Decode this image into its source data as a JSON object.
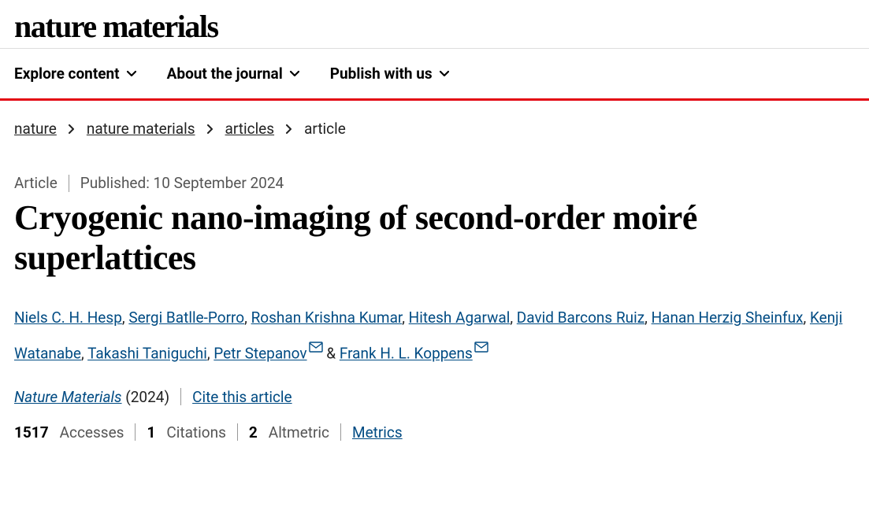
{
  "brand": "nature materials",
  "nav": [
    {
      "label": "Explore content"
    },
    {
      "label": "About the journal"
    },
    {
      "label": "Publish with us"
    }
  ],
  "breadcrumb": {
    "items": [
      {
        "label": "nature",
        "link": true
      },
      {
        "label": "nature materials",
        "link": true
      },
      {
        "label": "articles",
        "link": true
      }
    ],
    "current": "article"
  },
  "meta": {
    "type": "Article",
    "published_prefix": "Published: ",
    "published_date": "10 September 2024"
  },
  "title": "Cryogenic nano-imaging of second-order moiré superlattices",
  "authors": [
    {
      "name": "Niels C. H. Hesp",
      "mail": false
    },
    {
      "name": "Sergi Batlle-Porro",
      "mail": false
    },
    {
      "name": "Roshan Krishna Kumar",
      "mail": false
    },
    {
      "name": "Hitesh Agarwal",
      "mail": false
    },
    {
      "name": "David Barcons Ruiz",
      "mail": false
    },
    {
      "name": "Hanan Herzig Sheinfux",
      "mail": false
    },
    {
      "name": "Kenji Watanabe",
      "mail": false
    },
    {
      "name": "Takashi Taniguchi",
      "mail": false
    },
    {
      "name": "Petr Stepanov",
      "mail": true
    },
    {
      "name": "Frank H. L. Koppens",
      "mail": true
    }
  ],
  "journal": {
    "name": "Nature Materials",
    "year": "(2024)",
    "cite": "Cite this article"
  },
  "metrics": {
    "accesses": {
      "value": "1517",
      "label": "Accesses"
    },
    "citations": {
      "value": "1",
      "label": "Citations"
    },
    "altmetric": {
      "value": "2",
      "label": "Altmetric"
    },
    "link": "Metrics"
  },
  "colors": {
    "accent_red": "#e30613",
    "link_blue": "#004b83",
    "text": "#222222",
    "muted": "#555555"
  }
}
